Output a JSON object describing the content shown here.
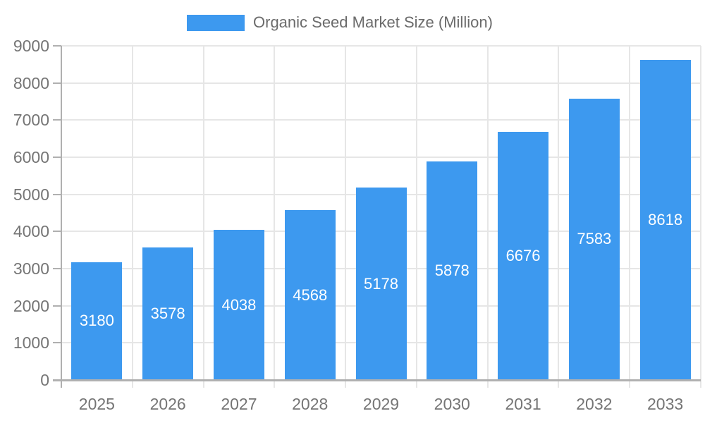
{
  "chart_data": {
    "type": "bar",
    "title": "Organic Seed Market Size (Million)",
    "categories": [
      "2025",
      "2026",
      "2027",
      "2028",
      "2029",
      "2030",
      "2031",
      "2032",
      "2033"
    ],
    "values": [
      3180,
      3578,
      4038,
      4568,
      5178,
      5878,
      6676,
      7583,
      8618
    ],
    "value_labels": [
      "3180",
      "3578",
      "4038",
      "4568",
      "5178",
      "5878",
      "6676",
      "7583",
      "8618"
    ],
    "xlabel": "",
    "ylabel": "",
    "ylim": [
      0,
      9000
    ],
    "ytick_step": 1000,
    "ytick_labels": [
      "0",
      "1000",
      "2000",
      "3000",
      "4000",
      "5000",
      "6000",
      "7000",
      "8000",
      "9000"
    ],
    "grid": true,
    "legend_position": "top-center",
    "value_label_position": "center-of-bar",
    "colors": {
      "bar": "#3D99EF",
      "value_label": "#FFFFFF",
      "axis_line": "#B0B0B0",
      "gridline": "#E6E6E6",
      "tick_label": "#757575",
      "legend_text": "#6B6B6B",
      "background": "#FFFFFF"
    }
  }
}
